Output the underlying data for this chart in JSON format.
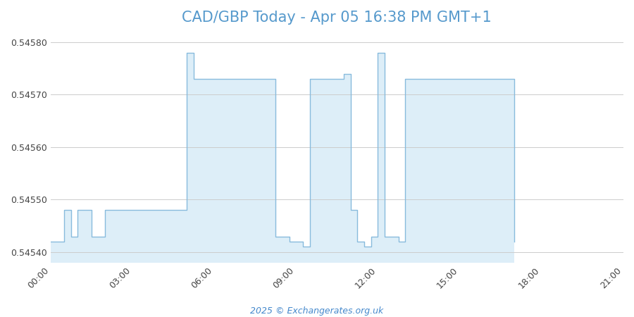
{
  "title": "CAD/GBP Today - Apr 05 16:38 PM GMT+1",
  "title_color": "#5599cc",
  "title_fontsize": 15,
  "footer": "2025 © Exchangerates.org.uk",
  "footer_color": "#4488cc",
  "ylim": [
    0.54538,
    0.54582
  ],
  "yticks": [
    0.5454,
    0.5455,
    0.5456,
    0.5457,
    0.5458
  ],
  "xtick_labels": [
    "00:00",
    "03:00",
    "06:00",
    "09:00",
    "12:00",
    "15:00",
    "18:00",
    "21:00"
  ],
  "xtick_positions": [
    0,
    3,
    6,
    9,
    12,
    15,
    18,
    21
  ],
  "xlim": [
    0,
    21
  ],
  "line_color": "#88bbdd",
  "fill_color": "#ddeef8",
  "background_color": "#ffffff",
  "time_series": [
    [
      0.0,
      0.54542
    ],
    [
      0.5,
      0.54542
    ],
    [
      0.5,
      0.54548
    ],
    [
      0.75,
      0.54548
    ],
    [
      0.75,
      0.54543
    ],
    [
      1.0,
      0.54543
    ],
    [
      1.0,
      0.54548
    ],
    [
      1.5,
      0.54548
    ],
    [
      1.5,
      0.54543
    ],
    [
      2.0,
      0.54543
    ],
    [
      2.0,
      0.54548
    ],
    [
      5.0,
      0.54548
    ],
    [
      5.0,
      0.54578
    ],
    [
      5.25,
      0.54578
    ],
    [
      5.25,
      0.54573
    ],
    [
      8.25,
      0.54573
    ],
    [
      8.25,
      0.54543
    ],
    [
      8.75,
      0.54543
    ],
    [
      8.75,
      0.54542
    ],
    [
      9.25,
      0.54542
    ],
    [
      9.25,
      0.54541
    ],
    [
      9.5,
      0.54541
    ],
    [
      9.5,
      0.54573
    ],
    [
      10.75,
      0.54573
    ],
    [
      10.75,
      0.54574
    ],
    [
      11.0,
      0.54574
    ],
    [
      11.0,
      0.54548
    ],
    [
      11.25,
      0.54548
    ],
    [
      11.25,
      0.54542
    ],
    [
      11.5,
      0.54542
    ],
    [
      11.5,
      0.54541
    ],
    [
      11.75,
      0.54541
    ],
    [
      11.75,
      0.54543
    ],
    [
      12.0,
      0.54543
    ],
    [
      12.0,
      0.54578
    ],
    [
      12.25,
      0.54578
    ],
    [
      12.25,
      0.54543
    ],
    [
      12.75,
      0.54543
    ],
    [
      12.75,
      0.54542
    ],
    [
      13.0,
      0.54542
    ],
    [
      13.0,
      0.54573
    ],
    [
      17.0,
      0.54573
    ],
    [
      17.0,
      0.54542
    ]
  ]
}
